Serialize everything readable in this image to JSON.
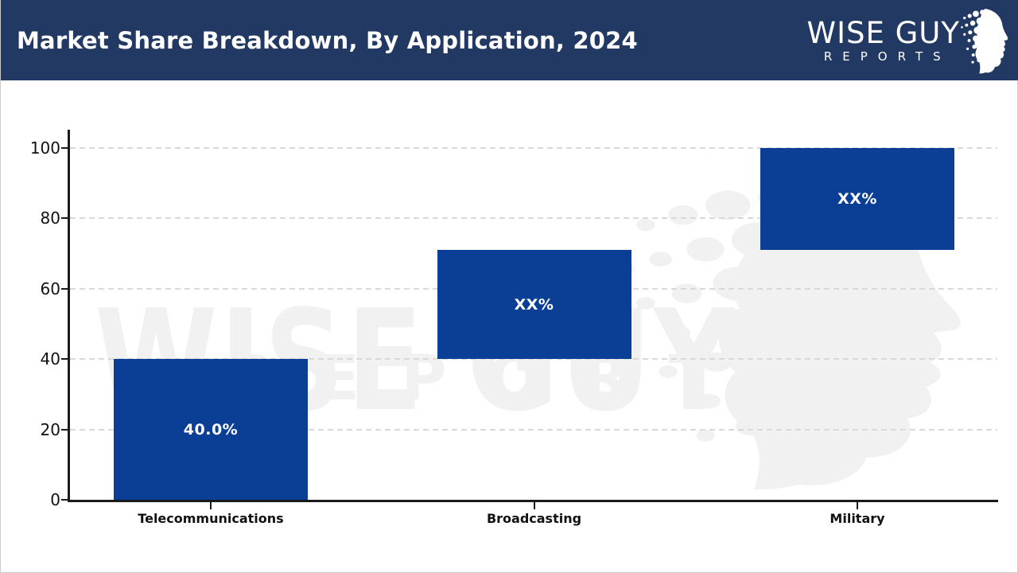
{
  "header": {
    "title": "Market Share Breakdown, By Application, 2024",
    "logo": {
      "line1": "WISE GUY",
      "line2": "REPORTS"
    }
  },
  "watermark": {
    "line1": "WISE GUY",
    "line2": "REPORTS"
  },
  "colors": {
    "header_bg": "#223a63",
    "title_text": "#ffffff",
    "bar": "#0b3f95",
    "bar_label": "#ffffff",
    "axis": "#1a1a1a",
    "grid": "#d9d9d9",
    "tick_label": "#111111",
    "watermark": "#f1f1f1",
    "page_border": "#cccccc"
  },
  "chart_data": {
    "type": "bar",
    "variant": "waterfall",
    "title": "Market Share Breakdown, By Application, 2024",
    "categories": [
      "Telecommunications",
      "Broadcasting",
      "Military"
    ],
    "bars": [
      {
        "category": "Telecommunications",
        "start": 0,
        "end": 40,
        "label": "40.0%"
      },
      {
        "category": "Broadcasting",
        "start": 40,
        "end": 71,
        "label": "XX%"
      },
      {
        "category": "Military",
        "start": 71,
        "end": 100,
        "label": "XX%"
      }
    ],
    "yticks": [
      0,
      20,
      40,
      60,
      80,
      100
    ],
    "ylim": [
      0,
      105
    ],
    "xlabel": "",
    "ylabel": "",
    "grid": "horizontal-dashed",
    "legend": "none"
  }
}
